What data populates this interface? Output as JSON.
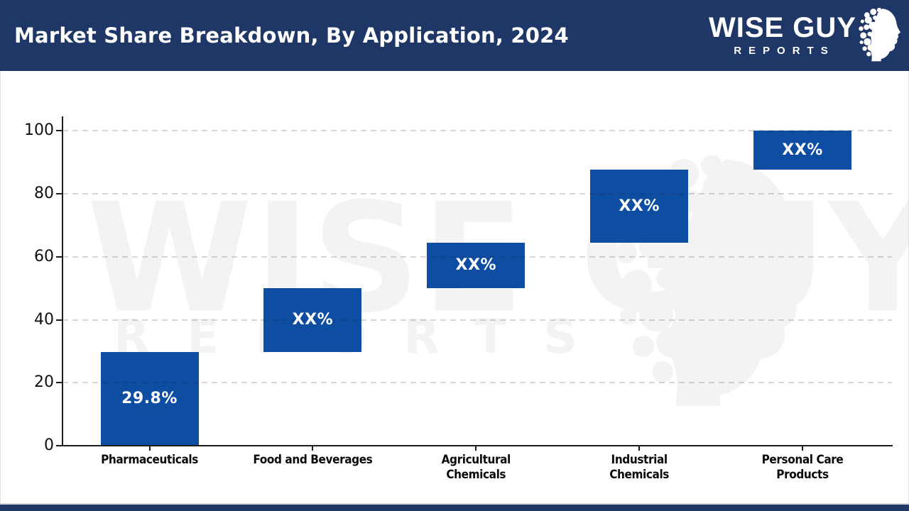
{
  "header": {
    "title": "Market Share Breakdown, By Application, 2024",
    "logo": {
      "line1": "WISE GUY",
      "line2": "REPORTS"
    }
  },
  "watermark": {
    "line1": "WISE GUY",
    "line2": "REPORTS",
    "face_icon": "dotted-head-profile"
  },
  "colors": {
    "header_bg": "#1f3766",
    "footer_bg": "#1f3766",
    "bar": "#0d4da2",
    "bar_label": "#ffffff",
    "watermark": "#f3f3f4",
    "axis": "#1c1c1c"
  },
  "chart_data": {
    "type": "bar",
    "subtype": "waterfall",
    "title": "Market Share Breakdown, By Application, 2024",
    "xlabel": "",
    "ylabel": "",
    "ylim": [
      0,
      105
    ],
    "yticks": [
      0,
      20,
      40,
      60,
      80,
      100
    ],
    "grid": "horizontal dashed, drawn over bars",
    "legend": "none",
    "categories": [
      "Pharmaceuticals",
      "Food and Beverages",
      "Agricultural Chemicals",
      "Industrial Chemicals",
      "Personal Care Products"
    ],
    "segments": [
      {
        "category": "Pharmaceuticals",
        "label_lines": [
          "Pharmaceuticals"
        ],
        "start": 0,
        "end": 29.8,
        "value_label": "29.8%"
      },
      {
        "category": "Food and Beverages",
        "label_lines": [
          "Food and Beverages"
        ],
        "start": 29.8,
        "end": 50.0,
        "value_label": "XX%"
      },
      {
        "category": "Agricultural Chemicals",
        "label_lines": [
          "Agricultural",
          "Chemicals"
        ],
        "start": 50.0,
        "end": 64.5,
        "value_label": "XX%"
      },
      {
        "category": "Industrial Chemicals",
        "label_lines": [
          "Industrial",
          "Chemicals"
        ],
        "start": 64.5,
        "end": 87.7,
        "value_label": "XX%"
      },
      {
        "category": "Personal Care Products",
        "label_lines": [
          "Personal Care",
          "Products"
        ],
        "start": 87.7,
        "end": 100,
        "value_label": "XX%"
      }
    ]
  }
}
